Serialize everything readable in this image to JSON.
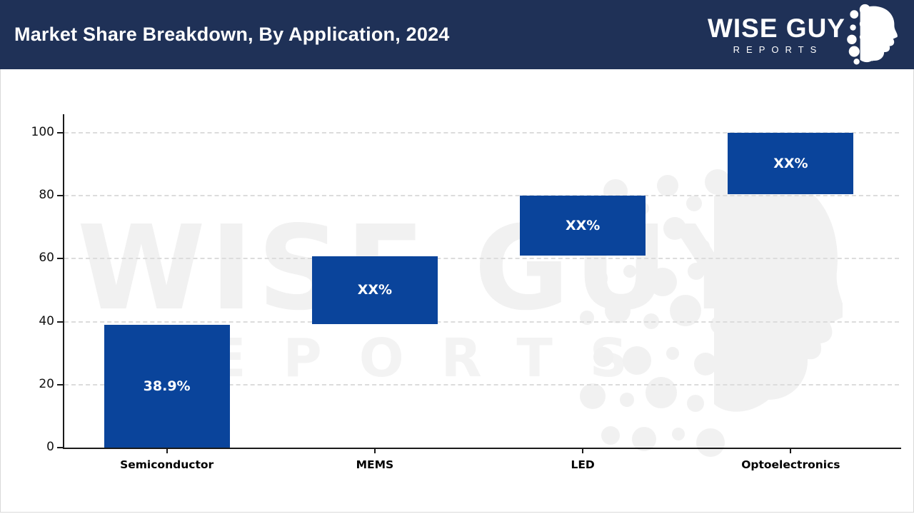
{
  "header": {
    "title": "Market Share Breakdown, By Application, 2024",
    "logo": {
      "wordmark": "WISE GUY",
      "subtext": "REPORTS"
    }
  },
  "watermark": {
    "wordmark": "WISE GUY",
    "subtext": "REPORTS"
  },
  "chart_data": {
    "type": "bar",
    "subtype": "waterfall",
    "title": "Market Share Breakdown, By Application, 2024",
    "categories": [
      "Semiconductor",
      "MEMS",
      "LED",
      "Optoelectronics"
    ],
    "bars": [
      {
        "category": "Semiconductor",
        "start": 0,
        "end": 38.9,
        "label": "38.9%"
      },
      {
        "category": "MEMS",
        "start": 39.3,
        "end": 60.7,
        "label": "XX%"
      },
      {
        "category": "LED",
        "start": 60.9,
        "end": 80.1,
        "label": "XX%"
      },
      {
        "category": "Optoelectronics",
        "start": 80.4,
        "end": 100,
        "label": "XX%"
      }
    ],
    "ylim": [
      0,
      100
    ],
    "yticks": [
      0,
      20,
      40,
      60,
      80,
      100
    ],
    "xlabel": "",
    "ylabel": "",
    "grid": "horizontal-dashed",
    "legend": "none"
  },
  "colors": {
    "header_bg": "#1F3157",
    "bar_fill": "#0A449B",
    "bar_label": "#FFFFFF",
    "grid_line": "#DCDCDC",
    "axis_line": "#1A1A1A",
    "tick_text": "#111111",
    "watermark": "#F1F1F1",
    "page_bg": "#FFFFFF"
  }
}
